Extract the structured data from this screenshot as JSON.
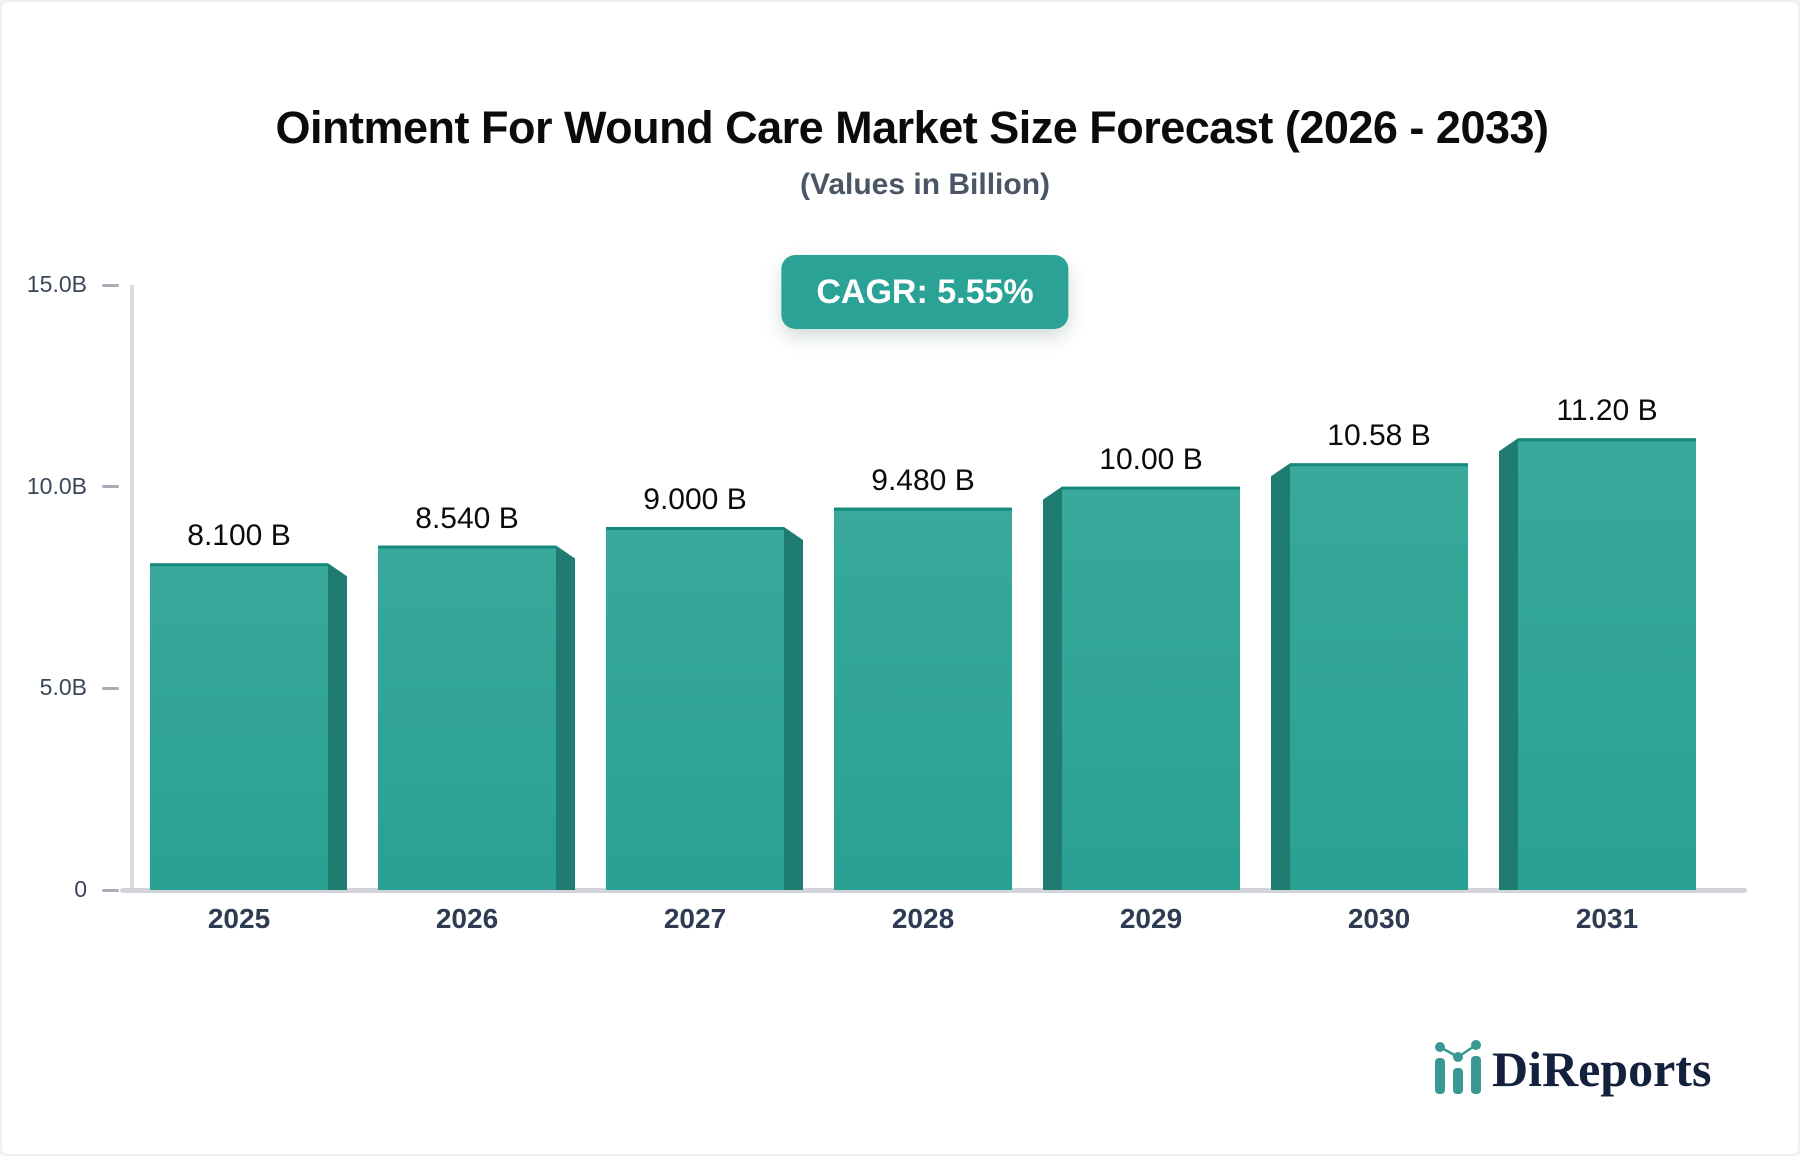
{
  "header": {
    "title": "Ointment For Wound Care Market Size Forecast (2026 - 2033)",
    "subtitle": "(Values in Billion)",
    "cagr_label": "CAGR: 5.55%"
  },
  "brand": {
    "name": "DiReports",
    "icon": "bar-chart-logo-icon"
  },
  "colors": {
    "bar_top": "#38a99b",
    "bar_bottom": "#2aa093",
    "bar_side": "#1e7c71",
    "bar_top_edge": "#15897c",
    "badge_bg": "#2aa396",
    "brand_teal": "#399992",
    "brand_navy": "#14213d"
  },
  "chart_data": {
    "type": "bar",
    "title": "Ointment For Wound Care Market Size Forecast (2026 - 2033)",
    "subtitle": "(Values in Billion)",
    "annotation": "CAGR: 5.55%",
    "categories": [
      "2025",
      "2026",
      "2027",
      "2028",
      "2029",
      "2030",
      "2031"
    ],
    "values": [
      8.1,
      8.54,
      9.0,
      9.48,
      10.0,
      10.58,
      11.2
    ],
    "value_labels": [
      "8.100 B",
      "8.540 B",
      "9.000 B",
      "9.480 B",
      "10.00 B",
      "10.58 B",
      "11.20 B"
    ],
    "ylim": [
      0,
      15
    ],
    "yticks": [
      {
        "label": "15.0B",
        "value": 15
      },
      {
        "label": "10.0B",
        "value": 10
      },
      {
        "label": "5.0B",
        "value": 5
      },
      {
        "label": "0",
        "value": 0
      }
    ],
    "xlabel": "",
    "ylabel": "",
    "grid": false,
    "legend": false,
    "bar_style": "3d-extruded-teal"
  }
}
